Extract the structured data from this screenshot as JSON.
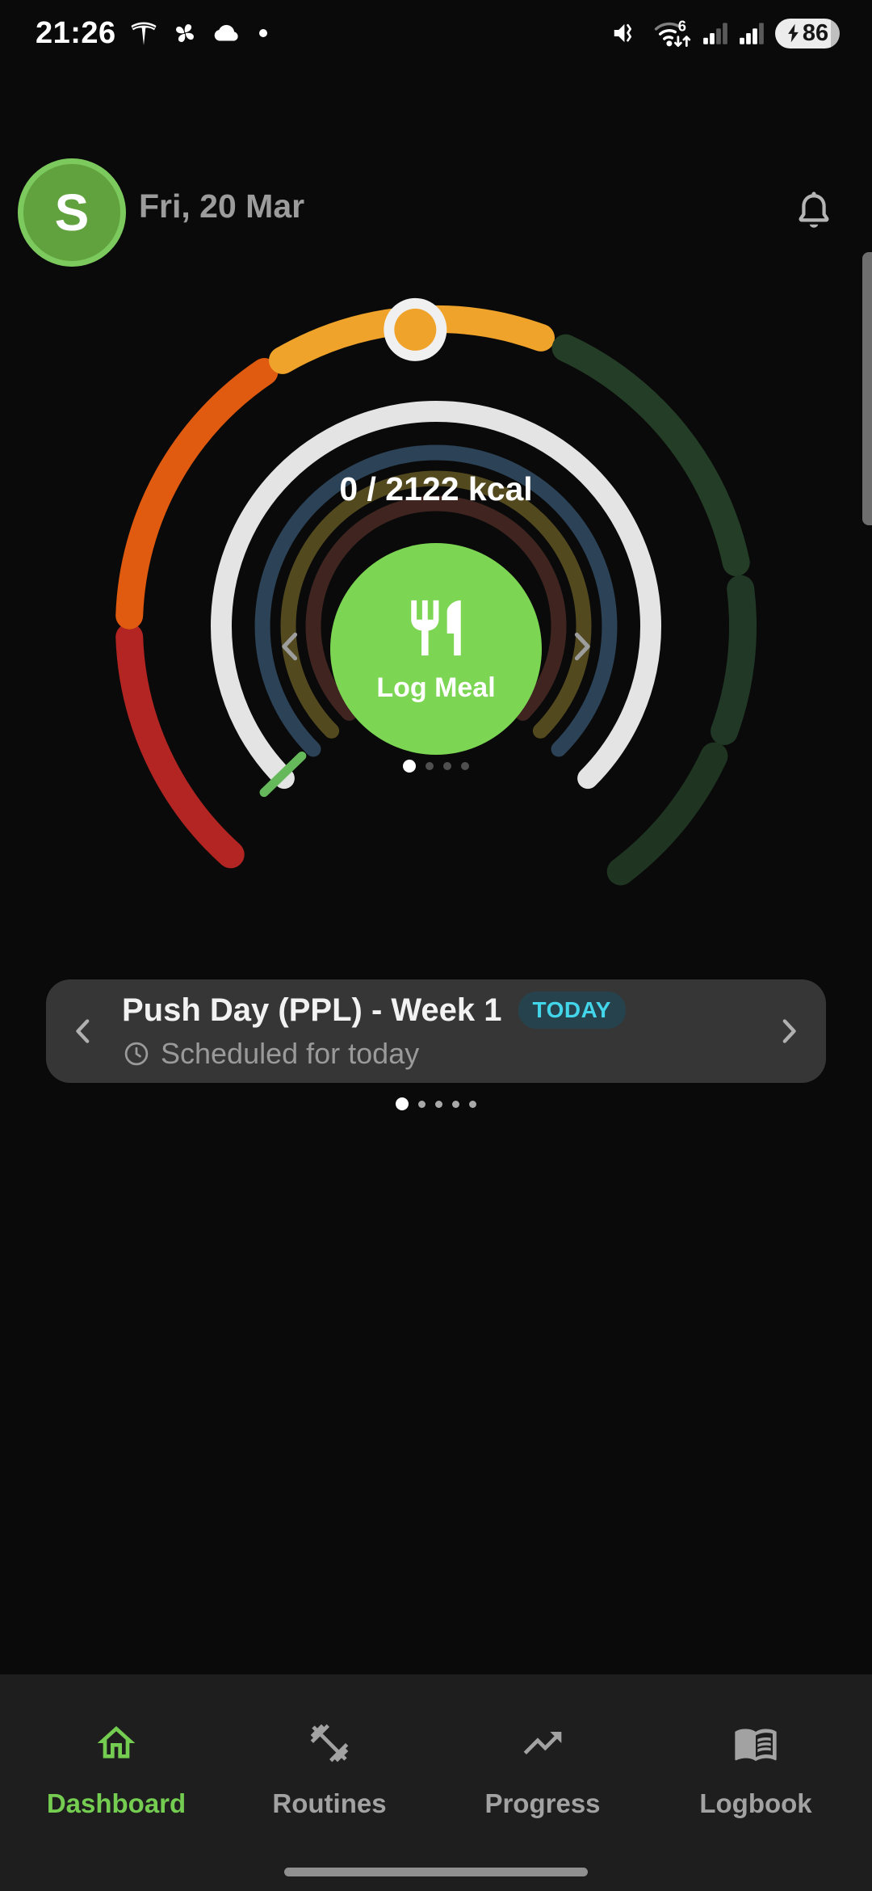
{
  "status_bar": {
    "time": "21:26",
    "left_icons": [
      "tesla-icon",
      "fan-icon",
      "cloud-icon",
      "notification-dot-icon"
    ],
    "right_icons": [
      "mute-vibrate-icon",
      "wifi-6-icon",
      "cell-signal-icon",
      "cell-signal-icon",
      "battery-icon"
    ],
    "wifi_label": "6",
    "battery_percent": "86"
  },
  "header": {
    "avatar_letter": "S",
    "date": "Fri, 20 Mar"
  },
  "calorie_gauge": {
    "label": "0 / 2122 kcal",
    "consumed_kcal": 0,
    "target_kcal": 2122,
    "unit": "kcal",
    "button_label": "Log Meal",
    "button_color": "#7cd653",
    "track": {
      "color": "#e4e4e4",
      "radius": 266,
      "width": 26,
      "start": -135,
      "end": 135
    },
    "progress_tick": {
      "color": "#66b95a",
      "angle": -134
    },
    "outer_segments": [
      {
        "name": "red-zone",
        "color": "#b22522",
        "start": -138,
        "end": -92
      },
      {
        "name": "orange-zone",
        "color": "#e05a10",
        "start": -88,
        "end": -34
      },
      {
        "name": "amber-zone",
        "color": "#efa32b",
        "start": -30,
        "end": 20
      },
      {
        "name": "green-zone-1",
        "color": "#243d26",
        "start": 25,
        "end": 78
      },
      {
        "name": "green-zone-2",
        "color": "#213826",
        "start": 83,
        "end": 110
      },
      {
        "name": "green-zone-3",
        "color": "#1f3522",
        "start": 115,
        "end": 143
      }
    ],
    "knob": {
      "angle_deg": -4,
      "ring_color": "#f0f0f0",
      "center_color": "#efa32b"
    },
    "inner_rings": [
      {
        "name": "inner-ring-1",
        "color": "#2c4257",
        "radius": 215
      },
      {
        "name": "inner-ring-2",
        "color": "#53491f",
        "radius": 183
      },
      {
        "name": "inner-ring-3",
        "color": "#3f2420",
        "radius": 152
      }
    ],
    "pager_dots": {
      "count": 4,
      "active_index": 0,
      "active_color": "#ffffff",
      "inactive_color": "#4f4f4f"
    }
  },
  "workout_card": {
    "title": "Push Day (PPL) - Week 1",
    "badge_label": "TODAY",
    "badge_text_color": "#43d5e9",
    "badge_bg_color": "#26424c",
    "subtitle": "Scheduled for today",
    "pager_dots": {
      "count": 5,
      "active_index": 0,
      "active_color": "#ffffff",
      "inactive_color": "#a9a9a9"
    }
  },
  "bottom_nav": {
    "active_color": "#74cd51",
    "inactive_color": "#a2a2a2",
    "items": [
      {
        "label": "Dashboard",
        "icon": "home-icon",
        "active": true
      },
      {
        "label": "Routines",
        "icon": "dumbbell-icon",
        "active": false
      },
      {
        "label": "Progress",
        "icon": "trending-up-icon",
        "active": false
      },
      {
        "label": "Logbook",
        "icon": "book-icon",
        "active": false
      }
    ]
  }
}
